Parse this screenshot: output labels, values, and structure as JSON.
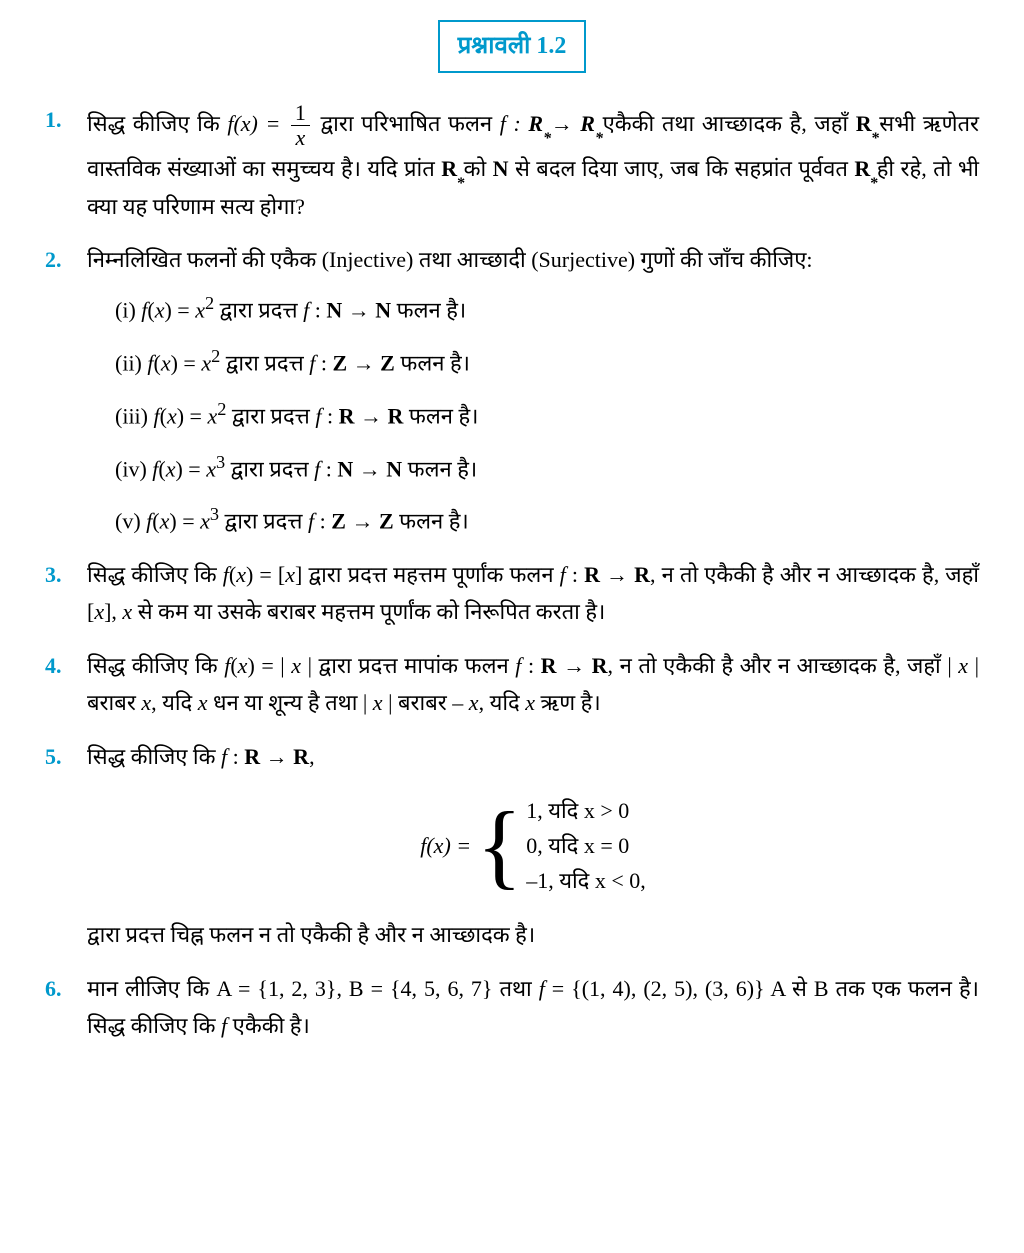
{
  "colors": {
    "accent": "#0099cc",
    "title_text": "#0099cc",
    "title_border": "#0099cc",
    "body_text": "#000000",
    "background": "#ffffff"
  },
  "typography": {
    "body_fontsize_pt": 16,
    "title_fontsize_pt": 18,
    "font_family": "Times New Roman / Devanagari serif"
  },
  "title": "प्रश्नावली  1.2",
  "questions": [
    {
      "num": 1,
      "parts": {
        "pre": "सिद्ध कीजिए कि ",
        "fx_eq": "f(x) = ",
        "frac_num": "1",
        "frac_den": "x",
        "mid1": " द्वारा परिभाषित फलन  ",
        "map": "f : R* → R*",
        "mid2": " एकैकी तथा आच्छादक है, जहाँ ",
        "rstar": "R*",
        "mid3": " सभी ऋणेतर वास्तविक संख्याओं का समुच्चय है। यदि प्रांत ",
        "rstar2": "R*",
        "mid4": " को ",
        "N": "N",
        "mid5": " से बदल दिया जाए, जब कि सहप्रांत पूर्ववत ",
        "rstar3": "R*",
        "mid6": " ही रहे, तो भी क्या यह परिणाम सत्य होगा?"
      }
    },
    {
      "num": 2,
      "intro": "निम्नलिखित फलनों की एकैक (Injective) तथा आच्छादी (Surjective) गुणों की जाँच कीजिए:",
      "sub": [
        {
          "label": "(i)",
          "fx": "f(x) = x²",
          "mid": "  द्वारा प्रदत्त  ",
          "map": "f : N → N",
          "end": " फलन है।"
        },
        {
          "label": "(ii)",
          "fx": "f(x) = x²",
          "mid": "  द्वारा प्रदत्त  ",
          "map": "f : Z → Z",
          "end": " फलन है।"
        },
        {
          "label": "(iii)",
          "fx": "f(x) = x²",
          "mid": "  द्वारा प्रदत्त  ",
          "map": "f : R → R",
          "end": " फलन है।"
        },
        {
          "label": "(iv)",
          "fx": "f(x) = x³",
          "mid": "  द्वारा प्रदत्त  ",
          "map": "f : N → N",
          "end": " फलन है।"
        },
        {
          "label": "(v)",
          "fx": "f(x) = x³",
          "mid": "  द्वारा प्रदत्त  ",
          "map": "f : Z → Z",
          "end": " फलन है।"
        }
      ]
    },
    {
      "num": 3,
      "text_pre": "सिद्ध कीजिए कि ",
      "fx": "f(x) = [x]",
      "mid1": " द्वारा प्रदत्त महत्तम पूर्णांक फलन ",
      "map": "f : R → R",
      "mid2": ", न तो एकैकी है और न आच्छादक है, जहाँ ",
      "bracket": "[x], x",
      "end": " से कम या उसके बराबर महत्तम पूर्णांक को निरूपित करता है।"
    },
    {
      "num": 4,
      "text_pre": "सिद्ध कीजिए कि ",
      "fx": "f(x) = | x |",
      "mid1": " द्वारा प्रदत्त मापांक फलन ",
      "map": "f : R → R",
      "mid2": ", न तो एकैकी है और न आच्छादक है, जहाँ ",
      "abs1": "| x |",
      "mid3": " बराबर ",
      "x1": "x",
      "mid4": ", यदि ",
      "x2": "x",
      "mid5": " धन या शून्य है तथा ",
      "abs2": "| x |",
      "mid6": " बराबर ",
      "negx": "– x",
      "mid7": ", यदि ",
      "x3": "x",
      "end": " ऋण है।"
    },
    {
      "num": 5,
      "intro_pre": "सिद्ध कीजिए कि  ",
      "map": "f : R → R",
      "comma": ",",
      "piecewise": {
        "lhs": "f(x) = ",
        "cases": [
          {
            "val": "1,",
            "cond": "यदि  x > 0"
          },
          {
            "val": "0,",
            "cond": "यदि  x = 0"
          },
          {
            "val": "–1,",
            "cond": "यदि  x < 0,"
          }
        ]
      },
      "outro": "द्वारा प्रदत्त चिह्न फलन न तो एकैकी है और न आच्छादक है।"
    },
    {
      "num": 6,
      "pre": "मान लीजिए कि ",
      "setA": "A = {1, 2, 3}",
      "comma1": ", ",
      "setB": "B = {4, 5, 6, 7}",
      "mid1": " तथा ",
      "setf": "f = {(1, 4), (2, 5), (3, 6)}",
      "mid2": " A से  B तक एक फलन है। सिद्ध कीजिए कि ",
      "f": "f",
      "end": " एकैकी है।"
    }
  ]
}
